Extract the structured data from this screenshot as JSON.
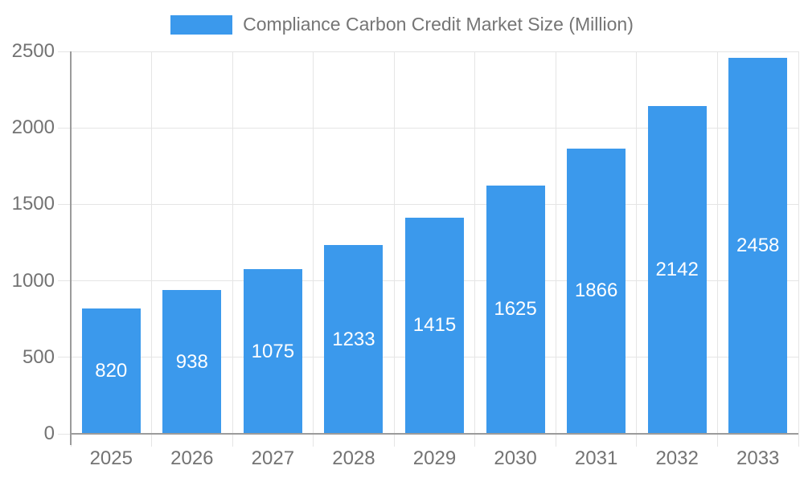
{
  "chart_data": {
    "type": "bar",
    "title": "Compliance Carbon Credit Market Size (Million)",
    "categories": [
      "2025",
      "2026",
      "2027",
      "2028",
      "2029",
      "2030",
      "2031",
      "2032",
      "2033"
    ],
    "values": [
      820,
      938,
      1075,
      1233,
      1415,
      1625,
      1866,
      2142,
      2458
    ],
    "xlabel": "",
    "ylabel": "",
    "ylim": [
      0,
      2500
    ],
    "yticks": [
      0,
      500,
      1000,
      1500,
      2000,
      2500
    ],
    "grid": true,
    "legend_position": "top",
    "value_labels": "inside-center-white",
    "colors": {
      "bar": "#3B99EC",
      "value_label": "#FFFFFF",
      "tick_label": "#737373",
      "legend_text": "#757575",
      "gridline": "#E5E5E5",
      "axis_line": "#9B9B9B",
      "background": "#FFFFFF"
    }
  }
}
